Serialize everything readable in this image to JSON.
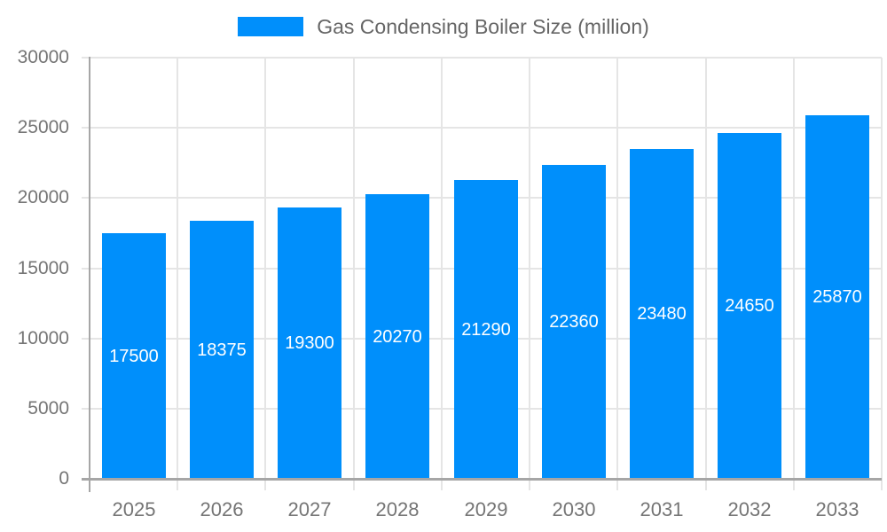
{
  "chart_data": {
    "type": "bar",
    "legend_label": "Gas Condensing Boiler Size (million)",
    "legend_position": "top",
    "categories": [
      "2025",
      "2026",
      "2027",
      "2028",
      "2029",
      "2030",
      "2031",
      "2032",
      "2033"
    ],
    "series": [
      {
        "name": "Gas Condensing Boiler Size (million)",
        "values": [
          17500,
          18375,
          19300,
          20270,
          21290,
          22360,
          23480,
          24650,
          25870
        ]
      }
    ],
    "ylim": [
      0,
      30000
    ],
    "ytick_step": 5000,
    "ytick_labels": [
      "0",
      "5000",
      "10000",
      "15000",
      "20000",
      "25000",
      "30000"
    ],
    "grid": true,
    "datalabels": "inside-center",
    "colors": {
      "bar": "#008FFB",
      "datalabel": "#ffffff",
      "axis_text": "#757575",
      "legend_text": "#666666",
      "gridline": "#e5e5e5",
      "axis_line": "#a6a6a6",
      "background": "#ffffff"
    }
  }
}
